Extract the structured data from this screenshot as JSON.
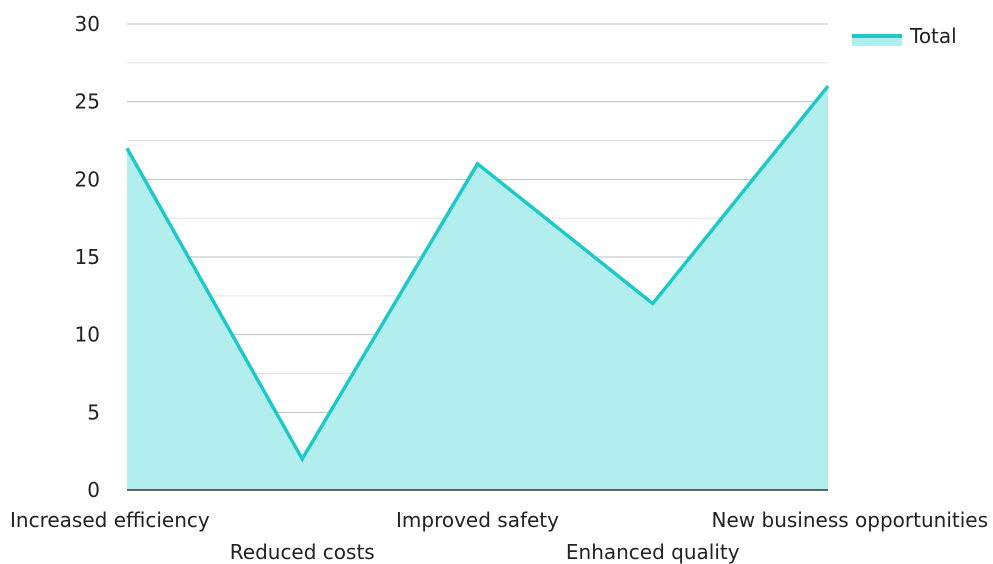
{
  "chart_data": {
    "type": "area",
    "categories": [
      "Increased efficiency",
      "Reduced costs",
      "Improved safety",
      "Enhanced quality",
      "New business opportunities"
    ],
    "series": [
      {
        "name": "Total",
        "values": [
          22,
          2,
          21,
          12,
          26
        ]
      }
    ],
    "ylim": [
      0,
      30
    ],
    "yticks": [
      0,
      5,
      10,
      15,
      20,
      25,
      30
    ],
    "grid": true,
    "legend_position": "top-right",
    "colors": {
      "line": "#1cc8c8",
      "fill": "#b2eeee",
      "grid": "#bfc7cc",
      "axis": "#333333"
    }
  }
}
